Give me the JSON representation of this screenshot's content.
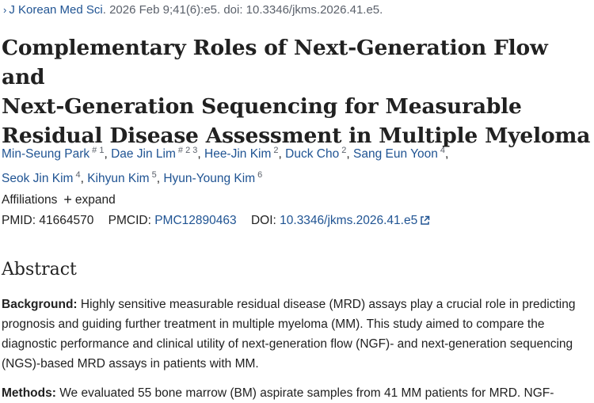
{
  "journal": {
    "chevron": "›",
    "name": "J Korean Med Sci",
    "citation": ". 2026 Feb 9;41(6):e5. doi: 10.3346/jkms.2026.41.e5."
  },
  "title": {
    "line1": "Complementary Roles of Next-Generation Flow and",
    "line2": "Next-Generation Sequencing for Measurable",
    "line3": "Residual Disease Assessment in Multiple Myeloma"
  },
  "authors": [
    {
      "name": "Min-Seung Park",
      "sup": "# 1"
    },
    {
      "name": "Dae Jin Lim",
      "sup": "# 2 3"
    },
    {
      "name": "Hee-Jin Kim",
      "sup": "2"
    },
    {
      "name": "Duck Cho",
      "sup": "2"
    },
    {
      "name": "Sang Eun Yoon",
      "sup": "4"
    },
    {
      "name": "Seok Jin Kim",
      "sup": "4"
    },
    {
      "name": "Kihyun Kim",
      "sup": "5"
    },
    {
      "name": "Hyun-Young Kim",
      "sup": "6"
    }
  ],
  "affiliations": {
    "label": "Affiliations",
    "toggle_icon": "+",
    "toggle_label": "expand"
  },
  "identifiers": {
    "pmid_label": "PMID:",
    "pmid": "41664570",
    "pmcid_label": "PMCID:",
    "pmcid": "PMC12890463",
    "doi_label": "DOI:",
    "doi": "10.3346/jkms.2026.41.e5"
  },
  "abstract": {
    "heading": "Abstract",
    "background_label": "Background:",
    "background_text": " Highly sensitive measurable residual disease (MRD) assays play a crucial role in predicting prognosis and guiding further treatment in multiple myeloma (MM). This study aimed to compare the diagnostic performance and clinical utility of next-generation flow (NGF)- and next-generation sequencing (NGS)-based MRD assays in patients with MM.",
    "methods_label": "Methods:",
    "methods_text": " We evaluated 55 bone marrow (BM) aspirate samples from 41 MM patients for MRD. NGF-"
  }
}
